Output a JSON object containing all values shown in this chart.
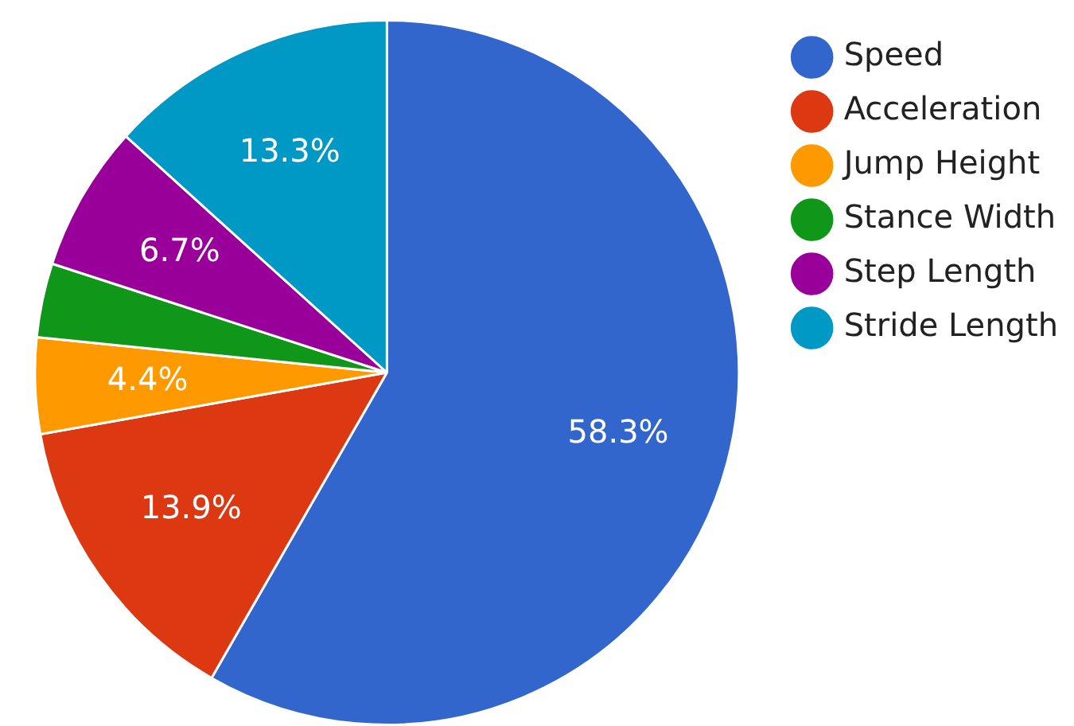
{
  "chart_data": {
    "type": "pie",
    "categories": [
      "Speed",
      "Acceleration",
      "Jump Height",
      "Stance Width",
      "Step Length",
      "Stride Length"
    ],
    "values": [
      58.3,
      13.9,
      4.4,
      3.4,
      6.7,
      13.3
    ],
    "value_labels": [
      "58.3%",
      "13.9%",
      "4.4%",
      null,
      "6.7%",
      "13.3%"
    ],
    "colors": [
      "#3366cc",
      "#dc3912",
      "#ff9900",
      "#109618",
      "#990099",
      "#0099c6"
    ],
    "legend": "top right"
  }
}
